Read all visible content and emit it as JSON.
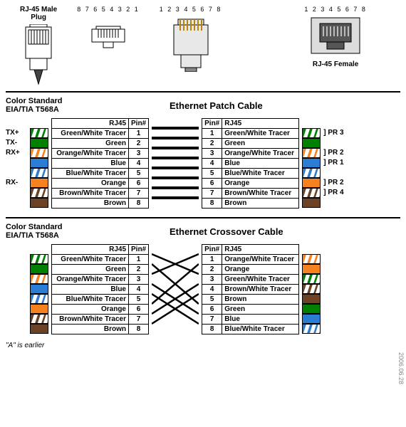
{
  "colors": {
    "green": "#008000",
    "orange": "#f58220",
    "blue": "#2b7cd3",
    "brown": "#6b4226",
    "white": "#ffffff"
  },
  "top": {
    "plug": {
      "label": "RJ-45 Male\nPlug"
    },
    "jack": {
      "pins": "8 7 6 5 4 3 2 1"
    },
    "conn": {
      "pins": "1 2 3 4 5 6 7 8"
    },
    "female": {
      "pins": "1 2 3 4 5 6 7 8",
      "label": "RJ-45\nFemale"
    }
  },
  "sections": [
    {
      "std": "Color Standard\nEIA/TIA T568A",
      "title": "Ethernet Patch Cable",
      "left_header": [
        "RJ45",
        "Pin#"
      ],
      "right_header": [
        "Pin#",
        "RJ45"
      ],
      "signals": [
        "TX+",
        "TX-",
        "RX+",
        "",
        "",
        "RX-",
        "",
        ""
      ],
      "pairs_right": [
        "PR 3",
        "",
        "PR 2",
        "PR 1",
        "",
        "PR 2",
        "PR 4",
        ""
      ],
      "pins_left": [
        {
          "n": 1,
          "txt": "Green/White Tracer",
          "c": "green",
          "striped": true
        },
        {
          "n": 2,
          "txt": "Green",
          "c": "green",
          "striped": false
        },
        {
          "n": 3,
          "txt": "Orange/White Tracer",
          "c": "orange",
          "striped": true
        },
        {
          "n": 4,
          "txt": "Blue",
          "c": "blue",
          "striped": false
        },
        {
          "n": 5,
          "txt": "Blue/White Tracer",
          "c": "blue",
          "striped": true
        },
        {
          "n": 6,
          "txt": "Orange",
          "c": "orange",
          "striped": false
        },
        {
          "n": 7,
          "txt": "Brown/White Tracer",
          "c": "brown",
          "striped": true
        },
        {
          "n": 8,
          "txt": "Brown",
          "c": "brown",
          "striped": false
        }
      ],
      "pins_right": [
        {
          "n": 1,
          "txt": "Green/White Tracer",
          "c": "green",
          "striped": true
        },
        {
          "n": 2,
          "txt": "Green",
          "c": "green",
          "striped": false
        },
        {
          "n": 3,
          "txt": "Orange/White Tracer",
          "c": "orange",
          "striped": true
        },
        {
          "n": 4,
          "txt": "Blue",
          "c": "blue",
          "striped": false
        },
        {
          "n": 5,
          "txt": "Blue/White Tracer",
          "c": "blue",
          "striped": true
        },
        {
          "n": 6,
          "txt": "Orange",
          "c": "orange",
          "striped": false
        },
        {
          "n": 7,
          "txt": "Brown/White Tracer",
          "c": "brown",
          "striped": true
        },
        {
          "n": 8,
          "txt": "Brown",
          "c": "brown",
          "striped": false
        }
      ],
      "straight": true
    },
    {
      "std": "Color Standard\nEIA/TIA T568A",
      "title": "Ethernet Crossover Cable",
      "left_header": [
        "RJ45",
        "Pin#"
      ],
      "right_header": [
        "Pin#",
        "RJ45"
      ],
      "signals": [],
      "pairs_right": [],
      "pins_left": [
        {
          "n": 1,
          "txt": "Green/White Tracer",
          "c": "green",
          "striped": true
        },
        {
          "n": 2,
          "txt": "Green",
          "c": "green",
          "striped": false
        },
        {
          "n": 3,
          "txt": "Orange/White Tracer",
          "c": "orange",
          "striped": true
        },
        {
          "n": 4,
          "txt": "Blue",
          "c": "blue",
          "striped": false
        },
        {
          "n": 5,
          "txt": "Blue/White Tracer",
          "c": "blue",
          "striped": true
        },
        {
          "n": 6,
          "txt": "Orange",
          "c": "orange",
          "striped": false
        },
        {
          "n": 7,
          "txt": "Brown/White Tracer",
          "c": "brown",
          "striped": true
        },
        {
          "n": 8,
          "txt": "Brown",
          "c": "brown",
          "striped": false
        }
      ],
      "pins_right": [
        {
          "n": 1,
          "txt": "Orange/White Tracer",
          "c": "orange",
          "striped": true
        },
        {
          "n": 2,
          "txt": "Orange",
          "c": "orange",
          "striped": false
        },
        {
          "n": 3,
          "txt": "Green/White Tracer",
          "c": "green",
          "striped": true
        },
        {
          "n": 4,
          "txt": "Brown/White Tracer",
          "c": "brown",
          "striped": true
        },
        {
          "n": 5,
          "txt": "Brown",
          "c": "brown",
          "striped": false
        },
        {
          "n": 6,
          "txt": "Green",
          "c": "green",
          "striped": false
        },
        {
          "n": 7,
          "txt": "Blue",
          "c": "blue",
          "striped": false
        },
        {
          "n": 8,
          "txt": "Blue/White Tracer",
          "c": "blue",
          "striped": true
        }
      ],
      "straight": false,
      "cross_map": [
        3,
        6,
        1,
        7,
        8,
        2,
        4,
        5
      ]
    }
  ],
  "footnote": "\"A\" is earlier",
  "date": "2006.06.28"
}
